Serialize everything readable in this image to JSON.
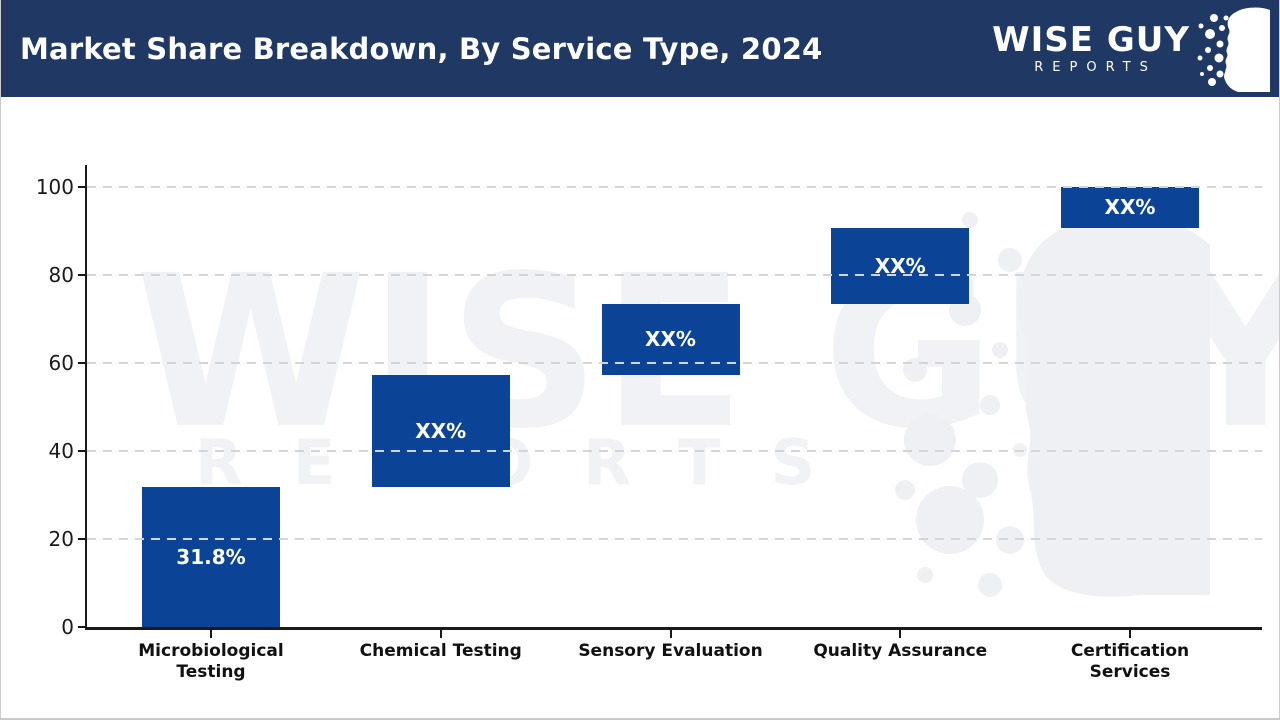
{
  "header": {
    "title": "Market Share Breakdown, By Service Type, 2024",
    "bg_color": "#1f3864",
    "logo": {
      "name": "WISE GUY REPORTS",
      "line1": "WISE GUY",
      "line2": "REPORTS"
    }
  },
  "watermark": {
    "line1": "WISE GUY",
    "line2": "REPORTS"
  },
  "chart_data": {
    "type": "bar",
    "variant": "waterfall",
    "title": "Market Share Breakdown, By Service Type, 2024",
    "categories": [
      "Microbiological Testing",
      "Chemical Testing",
      "Sensory Evaluation",
      "Quality Assurance",
      "Certification Services"
    ],
    "category_lines": [
      [
        "Microbiological",
        "Testing"
      ],
      [
        "Chemical Testing"
      ],
      [
        "Sensory Evaluation"
      ],
      [
        "Quality Assurance"
      ],
      [
        "Certification",
        "Services"
      ]
    ],
    "segments": [
      {
        "category": "Microbiological Testing",
        "start": 0,
        "end": 31.8,
        "value": 31.8,
        "label": "31.8%"
      },
      {
        "category": "Chemical Testing",
        "start": 31.8,
        "end": 57.3,
        "value": 25.5,
        "label": "XX%"
      },
      {
        "category": "Sensory Evaluation",
        "start": 57.3,
        "end": 73.5,
        "value": 16.2,
        "label": "XX%"
      },
      {
        "category": "Quality Assurance",
        "start": 73.5,
        "end": 90.7,
        "value": 17.2,
        "label": "XX%"
      },
      {
        "category": "Certification Services",
        "start": 90.7,
        "end": 100,
        "value": 9.3,
        "label": "XX%"
      }
    ],
    "ylim": [
      0,
      100
    ],
    "yticks": [
      0,
      20,
      40,
      60,
      80,
      100
    ],
    "xlabel": "",
    "ylabel": "",
    "grid": true,
    "grid_style": "dashed",
    "legend": false,
    "bar_color": "#0b4397",
    "bar_label_color": "#ffffff",
    "axis_color": "#1a1a1a"
  }
}
